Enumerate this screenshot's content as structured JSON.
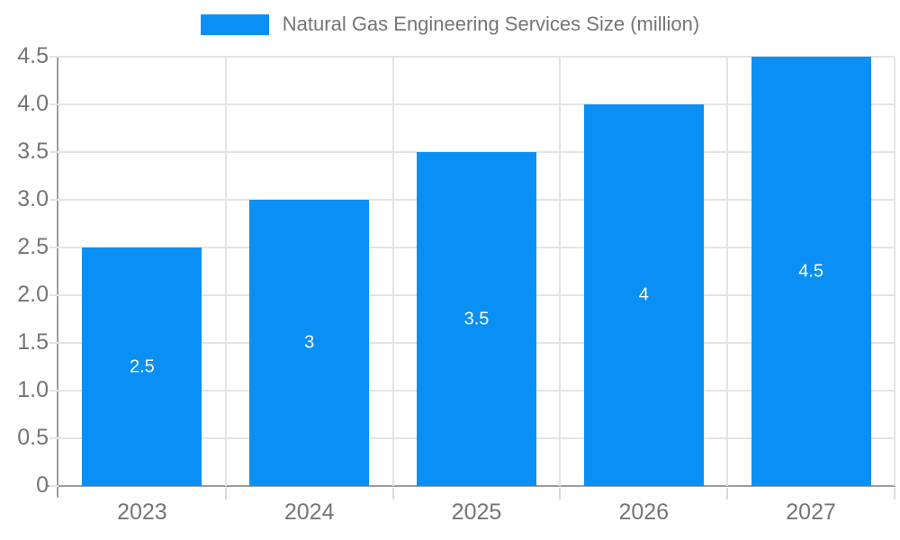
{
  "chart_data": {
    "type": "bar",
    "title": "Natural Gas Engineering Services Size (million)",
    "categories": [
      "2023",
      "2024",
      "2025",
      "2026",
      "2027"
    ],
    "values": [
      2.5,
      3,
      3.5,
      4,
      4.5
    ],
    "bar_labels": [
      "2.5",
      "3",
      "3.5",
      "4",
      "4.5"
    ],
    "xlabel": "",
    "ylabel": "",
    "ylim": [
      0,
      4.5
    ],
    "y_ticks": [
      0,
      0.5,
      1,
      1.5,
      2,
      2.5,
      3,
      3.5,
      4,
      4.5
    ],
    "y_tick_labels": [
      "0",
      "0.5",
      "1.0",
      "1.5",
      "2.0",
      "2.5",
      "3.0",
      "3.5",
      "4.0",
      "4.5"
    ],
    "grid": true,
    "legend_position": "top-center",
    "colors": {
      "bar": "#0a90f5",
      "grid": "#e4e4e4",
      "axis": "#9e9e9e",
      "tick": "#d9d9d9",
      "label_text": "#757575",
      "bar_label_text": "#ffffff"
    }
  }
}
